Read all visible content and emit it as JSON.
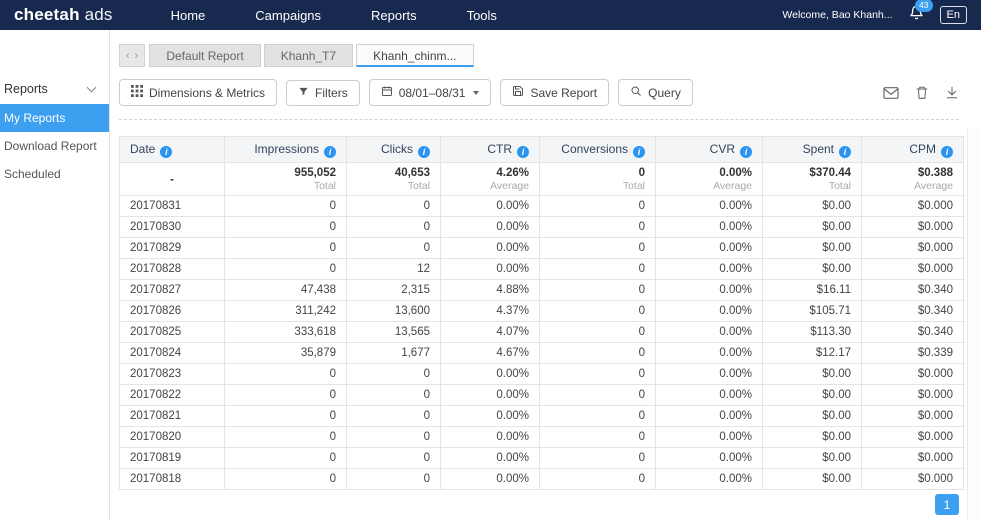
{
  "navbar": {
    "brand_bold": "cheetah",
    "brand_light": " ads",
    "items": [
      "Home",
      "Campaigns",
      "Reports",
      "Tools"
    ],
    "welcome": "Welcome,  Bao Khanh...",
    "notification_count": "43",
    "language": "En"
  },
  "sidebar": {
    "section_label": "Reports",
    "items": [
      {
        "label": "My Reports",
        "active": true
      },
      {
        "label": "Download Report",
        "active": false
      },
      {
        "label": "Scheduled",
        "active": false
      }
    ]
  },
  "tabs": {
    "scroll_left": "‹",
    "scroll_right": "›",
    "items": [
      {
        "label": "Default Report",
        "active": false
      },
      {
        "label": "Khanh_T7",
        "active": false
      },
      {
        "label": "Khanh_chinm...",
        "active": true
      }
    ]
  },
  "toolbar": {
    "dimensions_metrics": "Dimensions & Metrics",
    "filters": "Filters",
    "date_range": "08/01–08/31",
    "save_report": "Save Report",
    "query": "Query"
  },
  "table": {
    "columns": [
      "Date",
      "Impressions",
      "Clicks",
      "CTR",
      "Conversions",
      "CVR",
      "Spent",
      "CPM"
    ],
    "total": {
      "values": [
        "-",
        "955,052",
        "40,653",
        "4.26%",
        "0",
        "0.00%",
        "$370.44",
        "$0.388"
      ],
      "sublabels": [
        "",
        "Total",
        "Total",
        "Average",
        "Total",
        "Average",
        "Total",
        "Average"
      ]
    },
    "rows": [
      [
        "20170831",
        "0",
        "0",
        "0.00%",
        "0",
        "0.00%",
        "$0.00",
        "$0.000"
      ],
      [
        "20170830",
        "0",
        "0",
        "0.00%",
        "0",
        "0.00%",
        "$0.00",
        "$0.000"
      ],
      [
        "20170829",
        "0",
        "0",
        "0.00%",
        "0",
        "0.00%",
        "$0.00",
        "$0.000"
      ],
      [
        "20170828",
        "0",
        "12",
        "0.00%",
        "0",
        "0.00%",
        "$0.00",
        "$0.000"
      ],
      [
        "20170827",
        "47,438",
        "2,315",
        "4.88%",
        "0",
        "0.00%",
        "$16.11",
        "$0.340"
      ],
      [
        "20170826",
        "311,242",
        "13,600",
        "4.37%",
        "0",
        "0.00%",
        "$105.71",
        "$0.340"
      ],
      [
        "20170825",
        "333,618",
        "13,565",
        "4.07%",
        "0",
        "0.00%",
        "$113.30",
        "$0.340"
      ],
      [
        "20170824",
        "35,879",
        "1,677",
        "4.67%",
        "0",
        "0.00%",
        "$12.17",
        "$0.339"
      ],
      [
        "20170823",
        "0",
        "0",
        "0.00%",
        "0",
        "0.00%",
        "$0.00",
        "$0.000"
      ],
      [
        "20170822",
        "0",
        "0",
        "0.00%",
        "0",
        "0.00%",
        "$0.00",
        "$0.000"
      ],
      [
        "20170821",
        "0",
        "0",
        "0.00%",
        "0",
        "0.00%",
        "$0.00",
        "$0.000"
      ],
      [
        "20170820",
        "0",
        "0",
        "0.00%",
        "0",
        "0.00%",
        "$0.00",
        "$0.000"
      ],
      [
        "20170819",
        "0",
        "0",
        "0.00%",
        "0",
        "0.00%",
        "$0.00",
        "$0.000"
      ],
      [
        "20170818",
        "0",
        "0",
        "0.00%",
        "0",
        "0.00%",
        "$0.00",
        "$0.000"
      ]
    ]
  },
  "pagination": {
    "page": "1"
  },
  "colors": {
    "navbar_bg": "#17294e",
    "accent_blue": "#3d9ff0",
    "info_blue": "#2a95f0"
  }
}
